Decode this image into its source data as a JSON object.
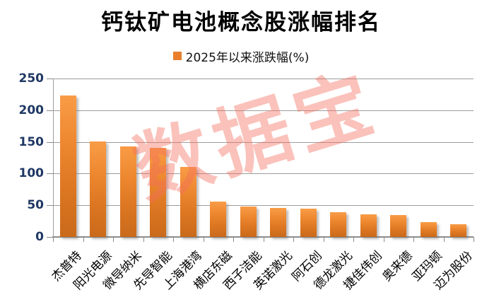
{
  "header": {
    "title": "钙钛矿电池概念股涨幅排名"
  },
  "legend": {
    "label": "2025年以来涨跌幅(%)",
    "swatch_color": "#e97f2d"
  },
  "watermark": {
    "text": "数据宝",
    "color": "rgba(242,110,92,0.42)"
  },
  "chart_data": {
    "type": "bar",
    "title": "钙钛矿电池概念股涨幅排名",
    "legend_entries": [
      "2025年以来涨跌幅(%)"
    ],
    "categories": [
      "杰普特",
      "阳光电源",
      "微导纳米",
      "先导智能",
      "上海港湾",
      "横店东磁",
      "西子洁能",
      "英诺激光",
      "阿石创",
      "德龙激光",
      "捷佳伟创",
      "奥来德",
      "亚玛顿",
      "迈为股份"
    ],
    "values": [
      223,
      151,
      143,
      141,
      111,
      56,
      48,
      46,
      45,
      39,
      36,
      35,
      23,
      20
    ],
    "xlabel": "",
    "ylabel": "",
    "ylim": [
      0,
      250
    ],
    "yticks": [
      0,
      50,
      100,
      150,
      200,
      250
    ],
    "grid": true,
    "legend_position": "top-center",
    "bar_color_top": "#f99c47",
    "bar_color_bottom": "#c96a1b",
    "axis_tick_label_color": "#1f3864",
    "gridline_color": "#9d9d9d"
  }
}
